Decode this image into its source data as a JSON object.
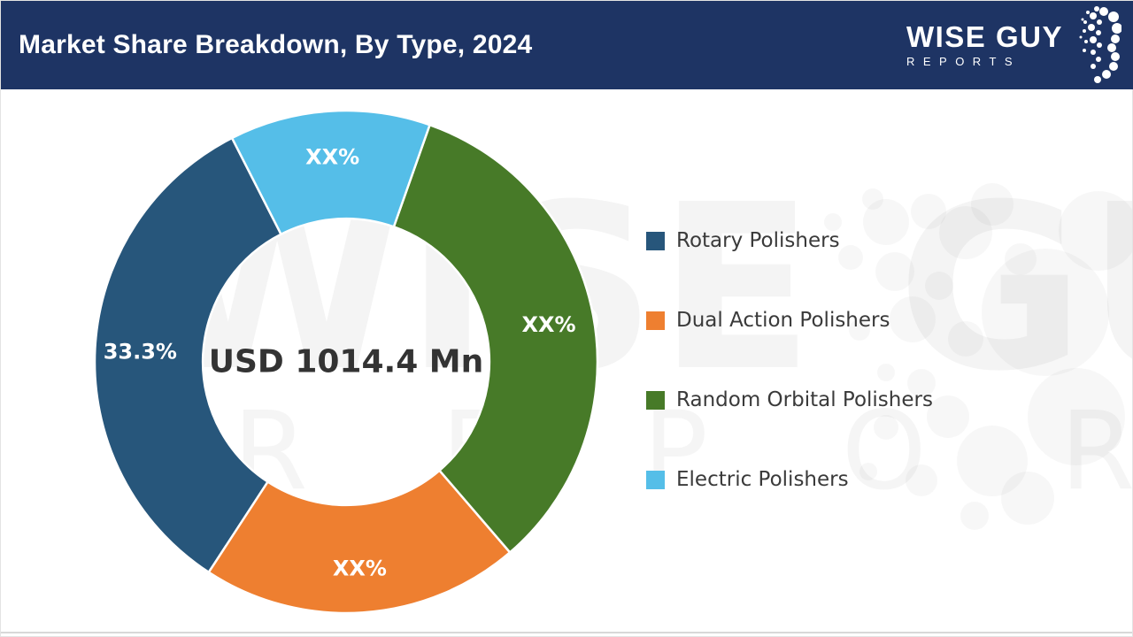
{
  "page": {
    "bg_color": "#ffffff",
    "bottom_rule_color": "#d8d8d8"
  },
  "header": {
    "title": "Market Share Breakdown, By Type, 2024",
    "bg_color": "#1E3464",
    "logo": {
      "line1": "WISE GUY",
      "line2": "REPORTS"
    }
  },
  "watermark": {
    "line1": "WISE GUY",
    "line2": "R E P O R T S"
  },
  "chart_data": {
    "type": "pie",
    "subtype": "donut",
    "title": "Market Share Breakdown, By Type, 2024",
    "center_label": "USD 1014.4 Mn",
    "start_angle_deg": 117,
    "direction": "ccw",
    "inner_radius_ratio": 0.57,
    "legend_position": "right",
    "segments": [
      {
        "name": "Rotary Polishers",
        "label": "33.3%",
        "value_pct": 33.3,
        "color": "#27567B"
      },
      {
        "name": "Dual Action Polishers",
        "label": "XX%",
        "value_pct": 20.5,
        "color": "#EE7F30"
      },
      {
        "name": "Random Orbital Polishers",
        "label": "XX%",
        "value_pct": 33.3,
        "color": "#477A28"
      },
      {
        "name": "Electric Polishers",
        "label": "XX%",
        "value_pct": 12.9,
        "color": "#55BEE8"
      }
    ]
  }
}
